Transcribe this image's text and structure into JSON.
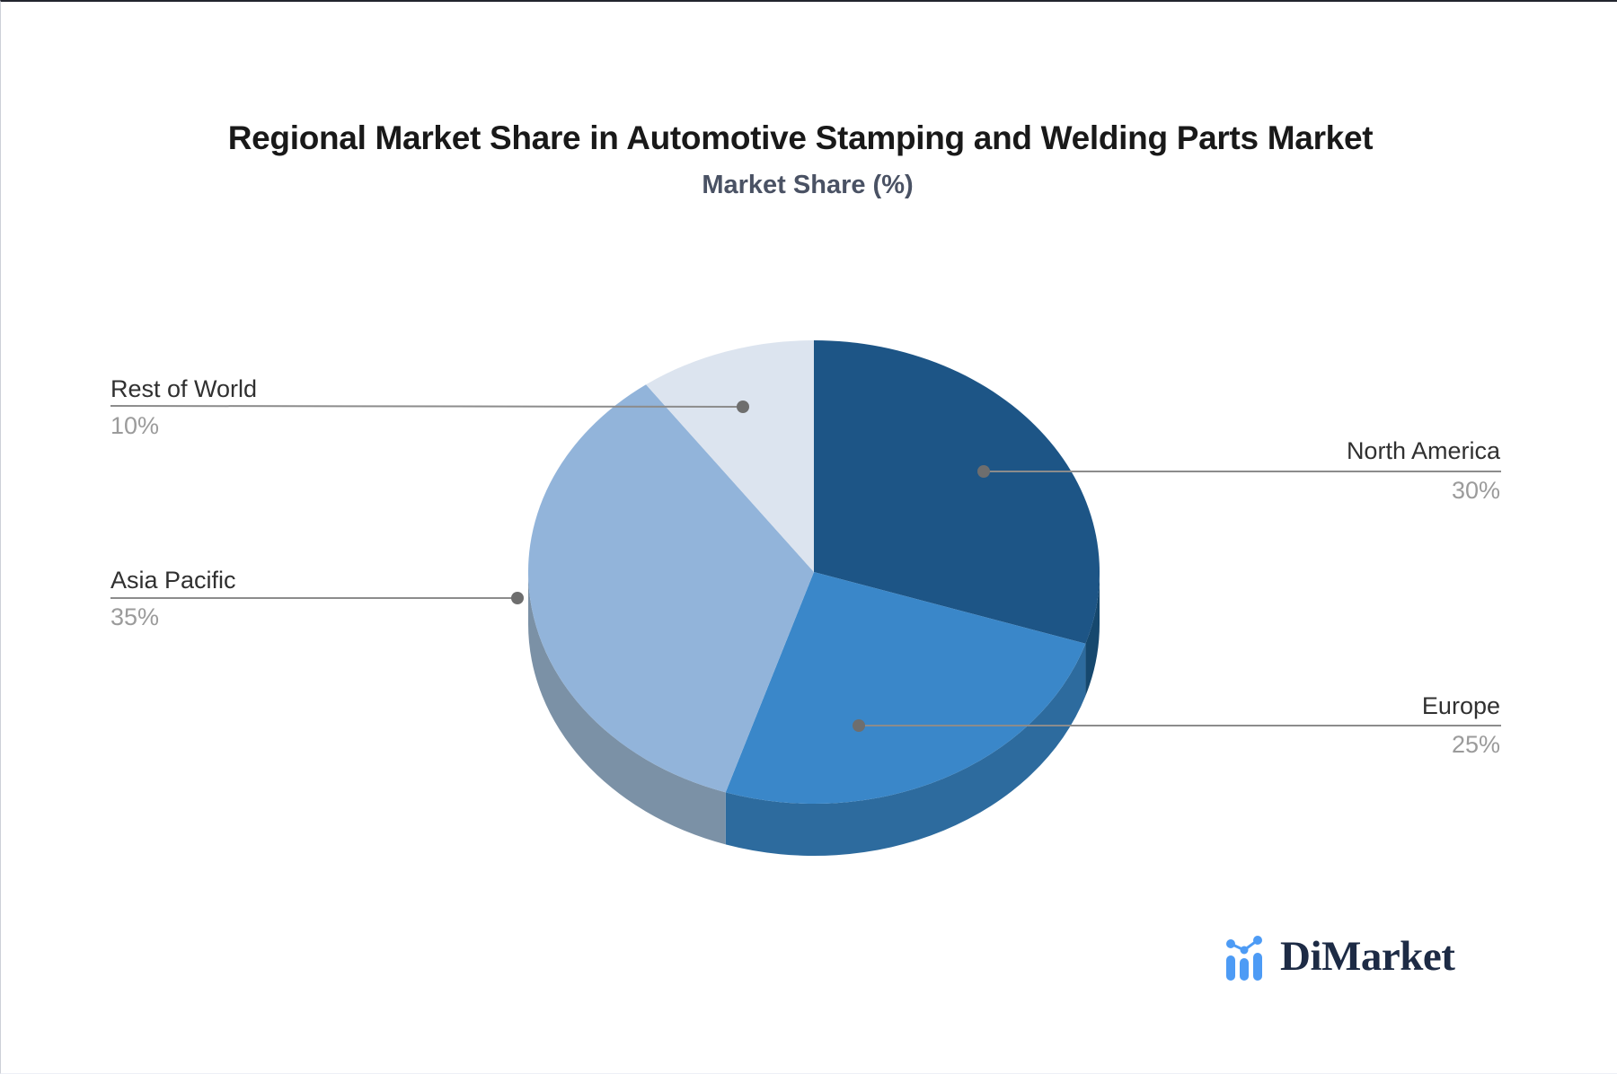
{
  "header": {
    "title": "Regional Market Share in Automotive Stamping and Welding Parts Market",
    "subtitle": "Market Share (%)"
  },
  "chart_data": {
    "type": "pie",
    "style": "3d",
    "title": "Regional Market Share in Automotive Stamping and Welding Parts Market",
    "subtitle": "Market Share (%)",
    "unit": "%",
    "start_angle_deg": 0,
    "direction": "clockwise",
    "legend_position": "callout-labels",
    "categories": [
      "North America",
      "Europe",
      "Asia Pacific",
      "Rest of World"
    ],
    "values": [
      30,
      25,
      35,
      10
    ],
    "value_labels": [
      "30%",
      "25%",
      "35%",
      "10%"
    ],
    "colors": [
      "#1D5586",
      "#3A87C9",
      "#92B4DA",
      "#DCE4EF"
    ],
    "side_colors": [
      "#16486E",
      "#2D6B9E",
      "#7B91A6",
      "#AEB9CB"
    ],
    "callout_line_color": "#8C8C8C",
    "callout_dot_color": "#6E6E6E",
    "label_color": "#303030",
    "pct_color": "#9B9B9B"
  },
  "logo": {
    "text": "DiMarket",
    "brand_text_color": "#1D2B45",
    "icon": "bar-chart-trend-icon",
    "icon_color": "#4D9BF5"
  }
}
